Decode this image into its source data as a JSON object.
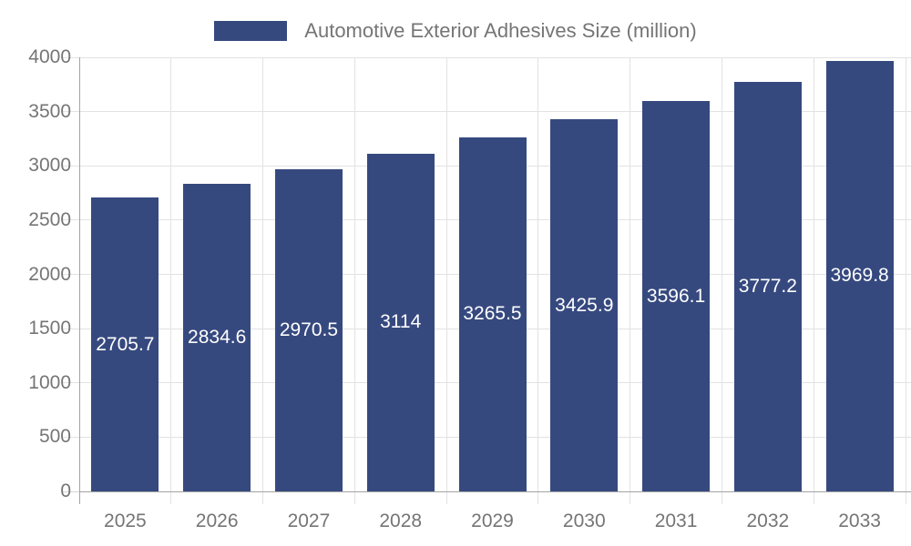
{
  "chart_data": {
    "type": "bar",
    "title": "Automotive Exterior Adhesives Size (million)",
    "legend_entries": [
      "Automotive Exterior Adhesives Size (million)"
    ],
    "legend_position": "top",
    "categories": [
      "2025",
      "2026",
      "2027",
      "2028",
      "2029",
      "2030",
      "2031",
      "2032",
      "2033"
    ],
    "values": [
      2705.7,
      2834.6,
      2970.5,
      3114,
      3265.5,
      3425.9,
      3596.1,
      3777.2,
      3969.8
    ],
    "value_labels": [
      "2705.7",
      "2834.6",
      "2970.5",
      "3114",
      "3265.5",
      "3425.9",
      "3596.1",
      "3777.2",
      "3969.8"
    ],
    "xlabel": "",
    "ylabel": "",
    "ylim": [
      0,
      4000
    ],
    "yticks": [
      0,
      500,
      1000,
      1500,
      2000,
      2500,
      3000,
      3500,
      4000
    ],
    "grid": true,
    "colors": {
      "bar": "#36497F",
      "gridline": "#e2e2e2",
      "tick": "#d6d6d6",
      "axis_line": "#a3a3a3",
      "axis_text": "#757575",
      "value_label_text": "#ffffff",
      "background": "#ffffff"
    }
  }
}
